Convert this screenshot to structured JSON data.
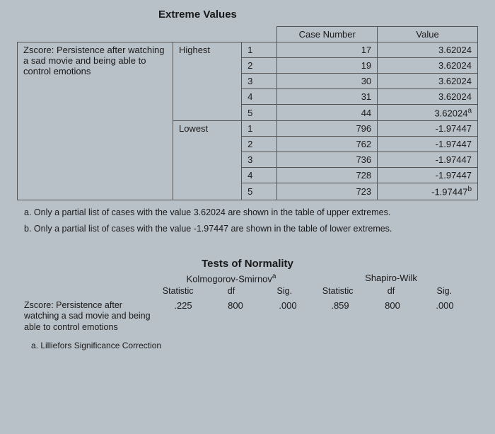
{
  "extremes": {
    "title": "Extreme Values",
    "col_case": "Case Number",
    "col_value": "Value",
    "var_label": "Zscore:  Persistence after watching a sad movie and being able to control emotions",
    "highest_label": "Highest",
    "lowest_label": "Lowest",
    "highest": [
      {
        "rank": "1",
        "case": "17",
        "value": "3.62024"
      },
      {
        "rank": "2",
        "case": "19",
        "value": "3.62024"
      },
      {
        "rank": "3",
        "case": "30",
        "value": "3.62024"
      },
      {
        "rank": "4",
        "case": "31",
        "value": "3.62024"
      },
      {
        "rank": "5",
        "case": "44",
        "value": "3.62024",
        "sup": "a"
      }
    ],
    "lowest": [
      {
        "rank": "1",
        "case": "796",
        "value": "-1.97447"
      },
      {
        "rank": "2",
        "case": "762",
        "value": "-1.97447"
      },
      {
        "rank": "3",
        "case": "736",
        "value": "-1.97447"
      },
      {
        "rank": "4",
        "case": "728",
        "value": "-1.97447"
      },
      {
        "rank": "5",
        "case": "723",
        "value": "-1.97447",
        "sup": "b"
      }
    ],
    "foot_a": "a. Only a partial list of cases with the value 3.62024 are shown in the table of upper extremes.",
    "foot_b": "b. Only a partial list of cases with the value -1.97447 are shown in the table of lower extremes."
  },
  "normality": {
    "title": "Tests of Normality",
    "ks_label": "Kolmogorov-Smirnov",
    "ks_sup": "a",
    "sw_label": "Shapiro-Wilk",
    "stat_h": "Statistic",
    "df_h": "df",
    "sig_h": "Sig.",
    "row_label": "Zscore:  Persistence after watching a sad movie and being able to control emotions",
    "ks_stat": ".225",
    "ks_df": "800",
    "ks_sig": ".000",
    "sw_stat": ".859",
    "sw_df": "800",
    "sw_sig": ".000",
    "footnote": "a. Lilliefors Significance Correction"
  }
}
